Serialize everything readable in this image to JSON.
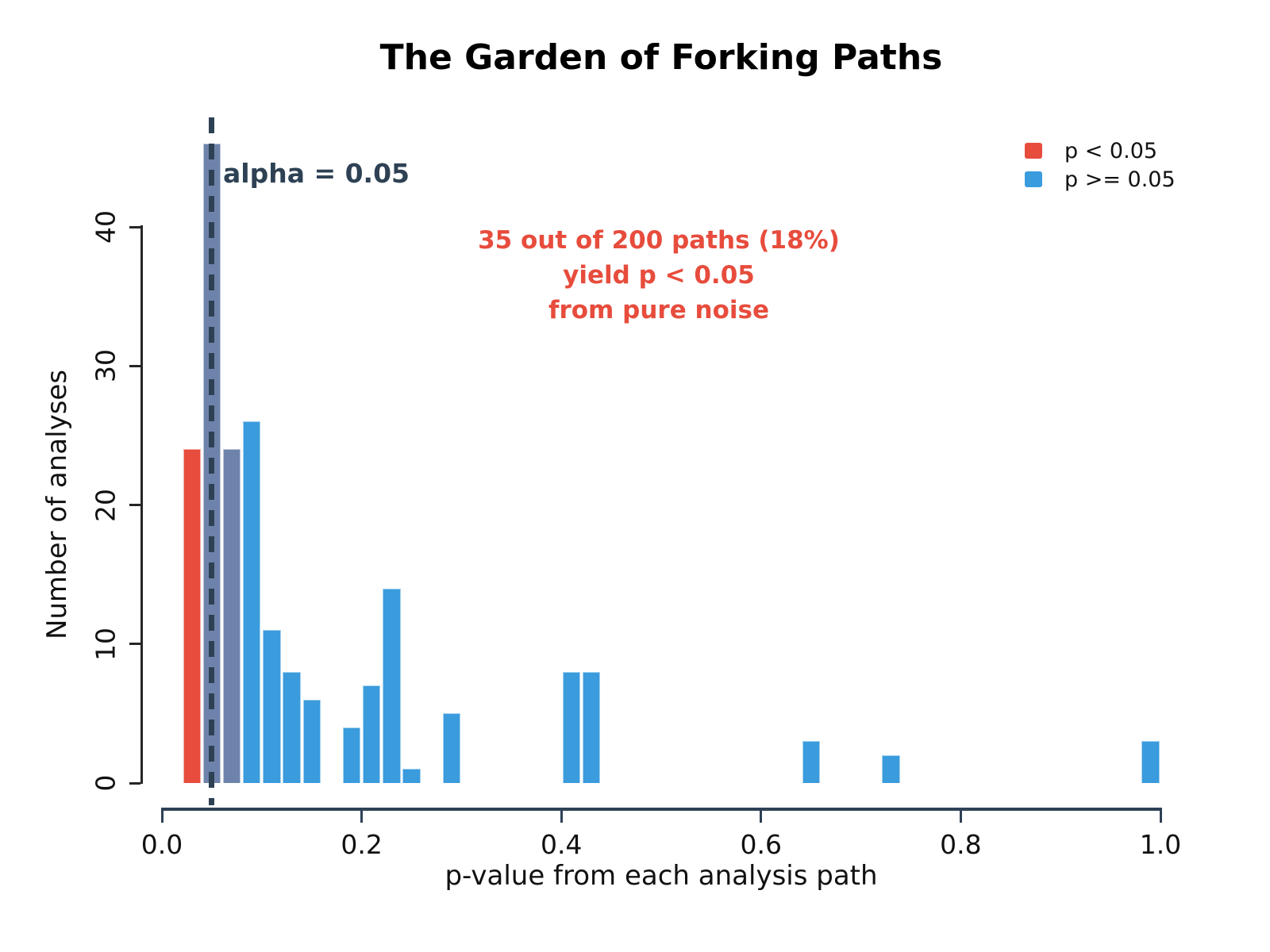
{
  "title": "The Garden of Forking Paths",
  "axes": {
    "x": {
      "label": "p-value from each analysis path",
      "tick_labels": [
        "0.0",
        "0.2",
        "0.4",
        "0.6",
        "0.8",
        "1.0"
      ],
      "tick_values": [
        0.0,
        0.2,
        0.4,
        0.6,
        0.8,
        1.0
      ],
      "range": [
        0.0,
        1.0
      ]
    },
    "y": {
      "label": "Number of analyses",
      "tick_labels": [
        "0",
        "10",
        "20",
        "30",
        "40"
      ],
      "tick_values": [
        0,
        10,
        20,
        30,
        40
      ],
      "range": [
        0,
        40
      ]
    }
  },
  "legend": {
    "position": "top-right",
    "items": [
      {
        "label": "p < 0.05",
        "color": "#e74c3c"
      },
      {
        "label": "p >= 0.05",
        "color": "#3a9bdd"
      }
    ]
  },
  "annotations": {
    "alpha_label": "alpha = 0.05",
    "alpha_value": 0.05,
    "note_lines": [
      "35 out of 200 paths (18%)",
      "yield p < 0.05",
      "from pure noise"
    ]
  },
  "colors": {
    "significant": "#e74c3c",
    "near_alpha": "#6e83ab",
    "nonsignificant": "#3a9bdd",
    "threshold_line": "#2e4154",
    "note_text": "#e74c3c",
    "x_axis": "#2e4156",
    "y_axis": "#262626"
  },
  "chart_data": {
    "type": "bar",
    "subtype": "histogram",
    "title": "The Garden of Forking Paths",
    "xlabel": "p-value from each analysis path",
    "ylabel": "Number of analyses",
    "xlim": [
      0.0,
      1.0
    ],
    "ylim": [
      0,
      40
    ],
    "grid": false,
    "legend_position": "top-right",
    "total_paths": 200,
    "bin_width": 0.02,
    "vline": {
      "x": 0.05,
      "style": "dashed",
      "label": "alpha = 0.05"
    },
    "bins": [
      {
        "start": 0.02,
        "end": 0.04,
        "count": 24,
        "group": "significant"
      },
      {
        "start": 0.04,
        "end": 0.06,
        "count": 46,
        "group": "near_alpha"
      },
      {
        "start": 0.06,
        "end": 0.08,
        "count": 24,
        "group": "near_alpha"
      },
      {
        "start": 0.08,
        "end": 0.1,
        "count": 26,
        "group": "nonsignificant"
      },
      {
        "start": 0.1,
        "end": 0.12,
        "count": 11,
        "group": "nonsignificant"
      },
      {
        "start": 0.12,
        "end": 0.14,
        "count": 8,
        "group": "nonsignificant"
      },
      {
        "start": 0.14,
        "end": 0.16,
        "count": 6,
        "group": "nonsignificant"
      },
      {
        "start": 0.18,
        "end": 0.2,
        "count": 4,
        "group": "nonsignificant"
      },
      {
        "start": 0.2,
        "end": 0.22,
        "count": 7,
        "group": "nonsignificant"
      },
      {
        "start": 0.22,
        "end": 0.24,
        "count": 14,
        "group": "nonsignificant"
      },
      {
        "start": 0.24,
        "end": 0.26,
        "count": 1,
        "group": "nonsignificant"
      },
      {
        "start": 0.28,
        "end": 0.3,
        "count": 5,
        "group": "nonsignificant"
      },
      {
        "start": 0.4,
        "end": 0.42,
        "count": 8,
        "group": "nonsignificant"
      },
      {
        "start": 0.42,
        "end": 0.44,
        "count": 8,
        "group": "nonsignificant"
      },
      {
        "start": 0.64,
        "end": 0.66,
        "count": 3,
        "group": "nonsignificant"
      },
      {
        "start": 0.72,
        "end": 0.74,
        "count": 2,
        "group": "nonsignificant"
      },
      {
        "start": 0.98,
        "end": 1.0,
        "count": 3,
        "group": "nonsignificant"
      }
    ]
  }
}
